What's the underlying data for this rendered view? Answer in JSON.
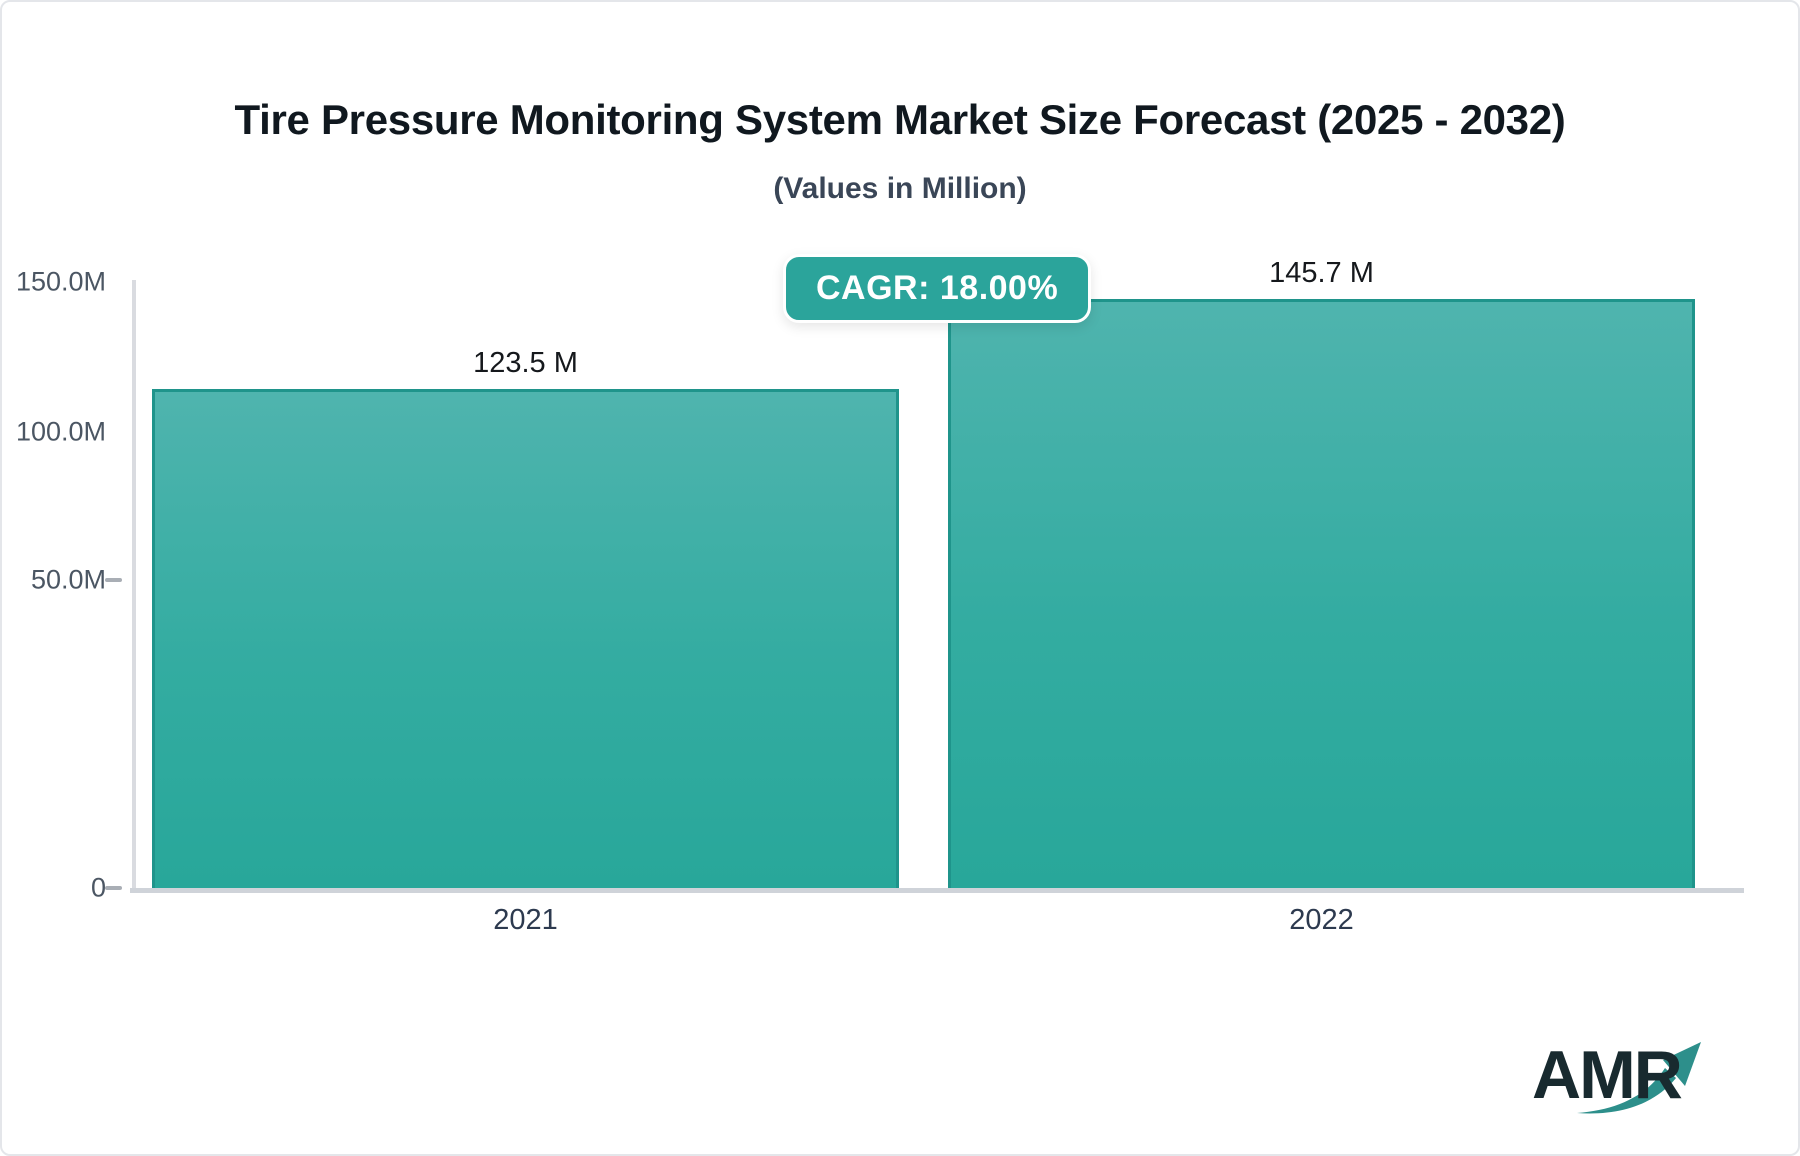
{
  "header": {
    "title": "Tire Pressure Monitoring System Market Size Forecast (2025 - 2032)",
    "subtitle": "(Values in Million)"
  },
  "cagr_badge": {
    "label": "CAGR: 18.00%",
    "bg_color": "#2BA49B",
    "text_color": "#ffffff"
  },
  "chart_data": {
    "type": "bar",
    "title": "Tire Pressure Monitoring System Market Size Forecast (2025 - 2032)",
    "subtitle": "(Values in Million)",
    "categories": [
      "2021",
      "2022"
    ],
    "values": [
      123.5,
      145.7
    ],
    "value_labels": [
      "123.5 M",
      "145.7 M"
    ],
    "unit": "Million",
    "cagr": "18.00%",
    "y_axis": {
      "min": 0,
      "max": 150,
      "tick_labels": [
        "150.0M",
        "100.0M",
        "50.0M",
        "0"
      ]
    },
    "grid": "off",
    "legend": "none",
    "bar_fill_top": "#4FB4AE",
    "bar_fill_bottom": "#28A79A",
    "bar_border": "#1F948B"
  },
  "logo": {
    "text": "AMR",
    "arrow_color": "#2D8F8B"
  }
}
